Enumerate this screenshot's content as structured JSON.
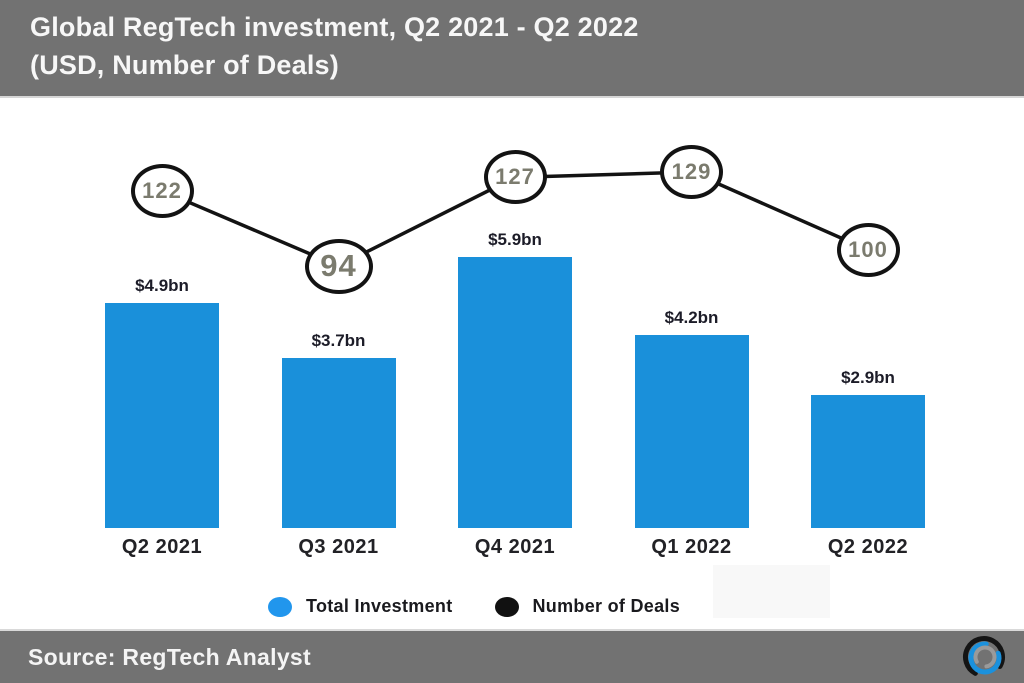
{
  "header": {
    "title_line1": "Global RegTech investment, Q2 2021 - Q2 2022",
    "title_line2": "(USD, Number of Deals)"
  },
  "footer": {
    "source": "Source: RegTech Analyst",
    "logo": "regtech-analyst-swirl-logo"
  },
  "legend": {
    "items": [
      {
        "label": "Total Investment",
        "color": "#2196ed",
        "marker": "circle"
      },
      {
        "label": "Number of Deals",
        "color": "#111111",
        "marker": "circle"
      }
    ],
    "position": "bottom"
  },
  "colors": {
    "header_bg": "#727272",
    "footer_bg": "#727272",
    "bar": "#1a90da",
    "deals_line": "#131313",
    "deal_circle_fill": "#ffffff",
    "deal_circle_text": "#7b7b6e",
    "value_label_text": "#1c1c28"
  },
  "chart_data": {
    "type": "bar",
    "title": "Global RegTech investment, Q2 2021 - Q2 2022 (USD, Number of Deals)",
    "categories": [
      "Q2 2021",
      "Q3 2021",
      "Q4 2021",
      "Q1 2022",
      "Q2 2022"
    ],
    "series": [
      {
        "name": "Total Investment",
        "type": "bar",
        "unit": "USD bn",
        "values": [
          4.9,
          3.7,
          5.9,
          4.2,
          2.9
        ],
        "labels": [
          "$4.9bn",
          "$3.7bn",
          "$5.9bn",
          "$4.2bn",
          "$2.9bn"
        ]
      },
      {
        "name": "Number of Deals",
        "type": "line",
        "values": [
          122,
          94,
          127,
          129,
          100
        ]
      }
    ],
    "xlabel": "",
    "ylabel": "",
    "grid": false,
    "legend_position": "bottom"
  }
}
